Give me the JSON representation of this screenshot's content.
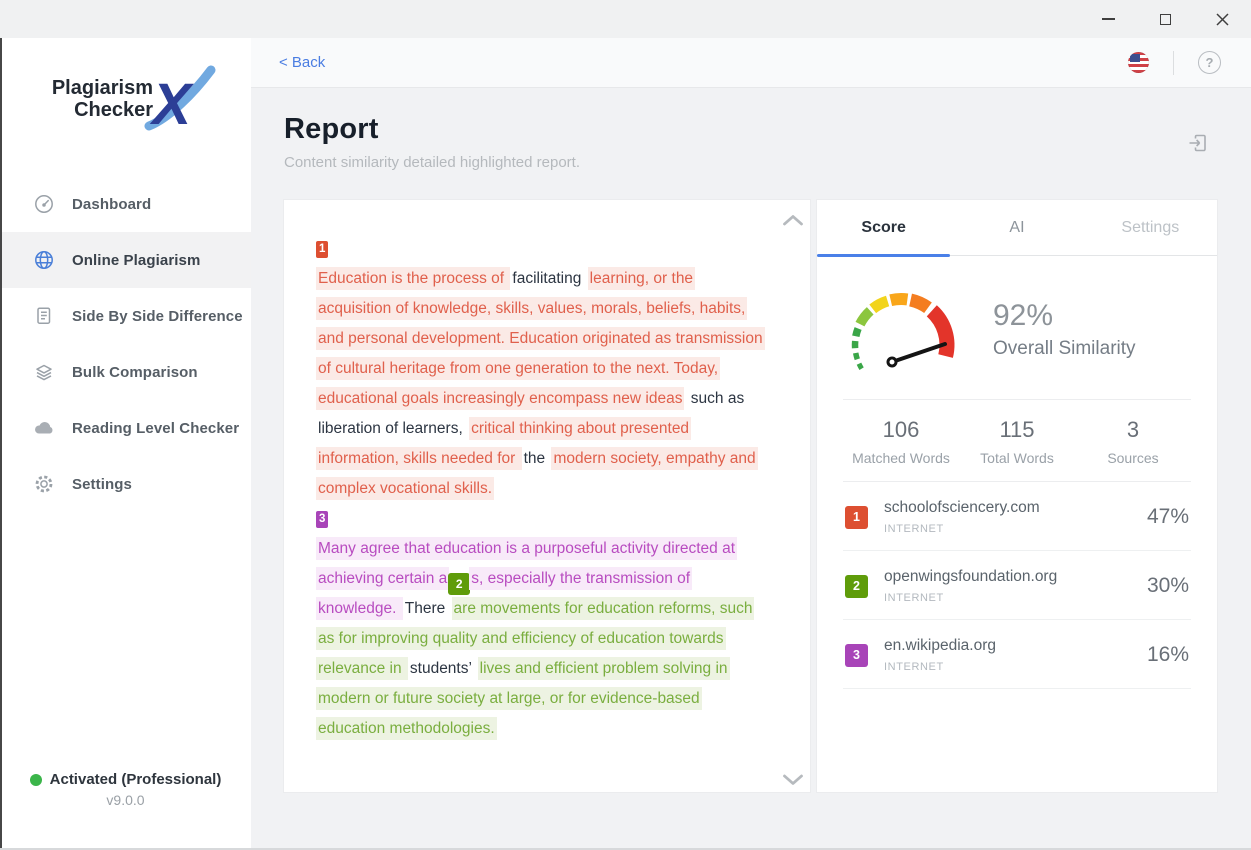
{
  "logo": {
    "line1": "Plagiarism",
    "line2": "Checker",
    "x": "X"
  },
  "sidebar": {
    "items": [
      {
        "id": "dashboard",
        "label": "Dashboard",
        "icon": "dashboard-icon",
        "active": false
      },
      {
        "id": "online-plagiarism",
        "label": "Online Plagiarism",
        "icon": "globe-icon",
        "active": true
      },
      {
        "id": "side-by-side-difference",
        "label": "Side By Side Difference",
        "icon": "document-icon",
        "active": false
      },
      {
        "id": "bulk-comparison",
        "label": "Bulk Comparison",
        "icon": "layers-icon",
        "active": false
      },
      {
        "id": "reading-level-checker",
        "label": "Reading Level Checker",
        "icon": "cloud-icon",
        "active": false
      },
      {
        "id": "settings",
        "label": "Settings",
        "icon": "gear-icon",
        "active": false
      }
    ],
    "activation": {
      "status": "Activated (Professional)",
      "version": "v9.0.0",
      "dot_color": "#3bb54a"
    }
  },
  "topbar": {
    "back_label": "< Back"
  },
  "header": {
    "title": "Report",
    "subtitle": "Content similarity detailed highlighted report."
  },
  "report": {
    "rows": [
      {
        "badge": "1",
        "src": 1
      },
      {
        "line": [
          {
            "s": "m1",
            "t": "Education is the process of "
          },
          {
            "s": "p",
            "t": "facilitating "
          },
          {
            "s": "m1",
            "t": "learning, or the"
          }
        ]
      },
      {
        "line": [
          {
            "s": "m1",
            "t": "acquisition of knowledge, skills, values, morals, beliefs, habits,"
          }
        ]
      },
      {
        "line": [
          {
            "s": "m1",
            "t": "and personal development. Education originated as transmission"
          }
        ]
      },
      {
        "line": [
          {
            "s": "m1",
            "t": "of cultural heritage from one generation to the next. Today,"
          }
        ]
      },
      {
        "line": [
          {
            "s": "m1",
            "t": "educational goals increasingly encompass new ideas"
          },
          {
            "s": "p",
            "t": " such as"
          }
        ]
      },
      {
        "line": [
          {
            "s": "p",
            "t": "liberation of learners, "
          },
          {
            "s": "m1",
            "t": "critical thinking about presented"
          }
        ]
      },
      {
        "line": [
          {
            "s": "m1",
            "t": "information, skills needed for "
          },
          {
            "s": "p",
            "t": "the "
          },
          {
            "s": "m1",
            "t": "modern society, empathy and"
          }
        ]
      },
      {
        "line": [
          {
            "s": "m1",
            "t": "complex vocational skills."
          }
        ]
      },
      {
        "badge": "3",
        "src": 3
      },
      {
        "line": [
          {
            "s": "m3",
            "t": "Many agree that education is a purposeful activity directed at"
          }
        ]
      },
      {
        "line": [
          {
            "s": "m3",
            "t": "achieving certain a"
          },
          {
            "s": "b2",
            "t": "2"
          },
          {
            "s": "m3",
            "t": "s, especially the transmission of"
          }
        ]
      },
      {
        "line": [
          {
            "s": "m3",
            "t": "knowledge. "
          },
          {
            "s": "p",
            "t": "There "
          },
          {
            "s": "m2",
            "t": "are movements for education reforms, such"
          }
        ]
      },
      {
        "line": [
          {
            "s": "m2",
            "t": "as for improving quality and efficiency of education towards"
          }
        ]
      },
      {
        "line": [
          {
            "s": "m2",
            "t": "relevance in "
          },
          {
            "s": "p",
            "t": "students’ "
          },
          {
            "s": "m2",
            "t": "lives and efficient problem solving in"
          }
        ]
      },
      {
        "line": [
          {
            "s": "m2",
            "t": "modern or future society at large, or for evidence-based"
          }
        ]
      },
      {
        "line": [
          {
            "s": "m2",
            "t": "education methodologies."
          }
        ]
      }
    ]
  },
  "score_panel": {
    "tabs": [
      {
        "id": "score",
        "label": "Score",
        "active": true
      },
      {
        "id": "ai",
        "label": "AI",
        "active": false
      },
      {
        "id": "settings",
        "label": "Settings",
        "active": false
      }
    ],
    "overall": {
      "percent": "92%",
      "label": "Overall Similarity"
    },
    "stats": [
      {
        "value": "106",
        "label": "Matched Words"
      },
      {
        "value": "115",
        "label": "Total Words"
      },
      {
        "value": "3",
        "label": "Sources"
      }
    ],
    "sources": [
      {
        "num": "1",
        "domain": "schoolofsciencery.com",
        "type": "INTERNET",
        "percent": "47%",
        "color": "#dd4f31"
      },
      {
        "num": "2",
        "domain": "openwingsfoundation.org",
        "type": "INTERNET",
        "percent": "30%",
        "color": "#5f9c0a"
      },
      {
        "num": "3",
        "domain": "en.wikipedia.org",
        "type": "INTERNET",
        "percent": "16%",
        "color": "#a844b8"
      }
    ]
  },
  "colors": {
    "accent_blue": "#4a80e8",
    "match1_text": "#e0604c",
    "match1_bg": "#fbeae6",
    "badge1": "#dd4f31",
    "match2_text": "#7aae3f",
    "match2_bg": "#edf3e2",
    "badge2": "#5f9c0a",
    "match3_text": "#b84cc0",
    "match3_bg": "#f8eaf9",
    "badge3": "#a844b8",
    "gauge": [
      "#3aa648",
      "#8cc63e",
      "#f2d41c",
      "#f9a61a",
      "#f47d20",
      "#e3342a"
    ],
    "needle": "#141414"
  }
}
